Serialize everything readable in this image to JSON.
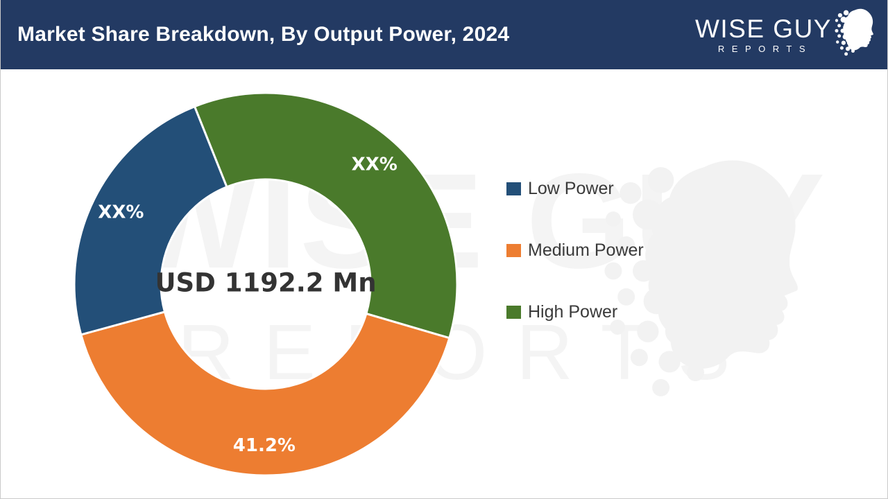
{
  "header": {
    "title": "Market Share Breakdown, By Output Power, 2024",
    "logo": {
      "line1": "WISE GUY",
      "line2": "REPORTS"
    }
  },
  "chart_data": {
    "type": "pie",
    "subtype": "donut",
    "title": "Market Share Breakdown, By Output Power, 2024",
    "center_label": "USD 1192.2 Mn",
    "legend_position": "right",
    "segments": [
      {
        "name": "Low Power",
        "label": "XX%",
        "value_pct": 23.2,
        "value_is_masked": true,
        "color": "#234f78",
        "label_color": "#ffffff"
      },
      {
        "name": "Medium Power",
        "label": "41.2%",
        "value_pct": 41.2,
        "value_is_masked": false,
        "color": "#ed7d31",
        "label_color": "#ffffff"
      },
      {
        "name": "High Power",
        "label": "XX%",
        "value_pct": 35.6,
        "value_is_masked": true,
        "color": "#4a7a2b",
        "label_color": "#ffffff"
      }
    ],
    "start_angle_deg": -21.8,
    "draw_order": [
      2,
      1,
      0
    ],
    "note": "Masked XX% segment values estimated from arc angles"
  },
  "watermark": {
    "line1": "WISE GUY",
    "line2": "REPORTS"
  },
  "colors": {
    "header_bg": "#233a63",
    "title_text": "#ffffff",
    "center_text": "#333333",
    "legend_text": "#3a3a3a",
    "watermark": "#f4f4f4",
    "watermark_face": "#f2f2f2",
    "separator": "#ffffff",
    "border": "#c9c9c9"
  }
}
